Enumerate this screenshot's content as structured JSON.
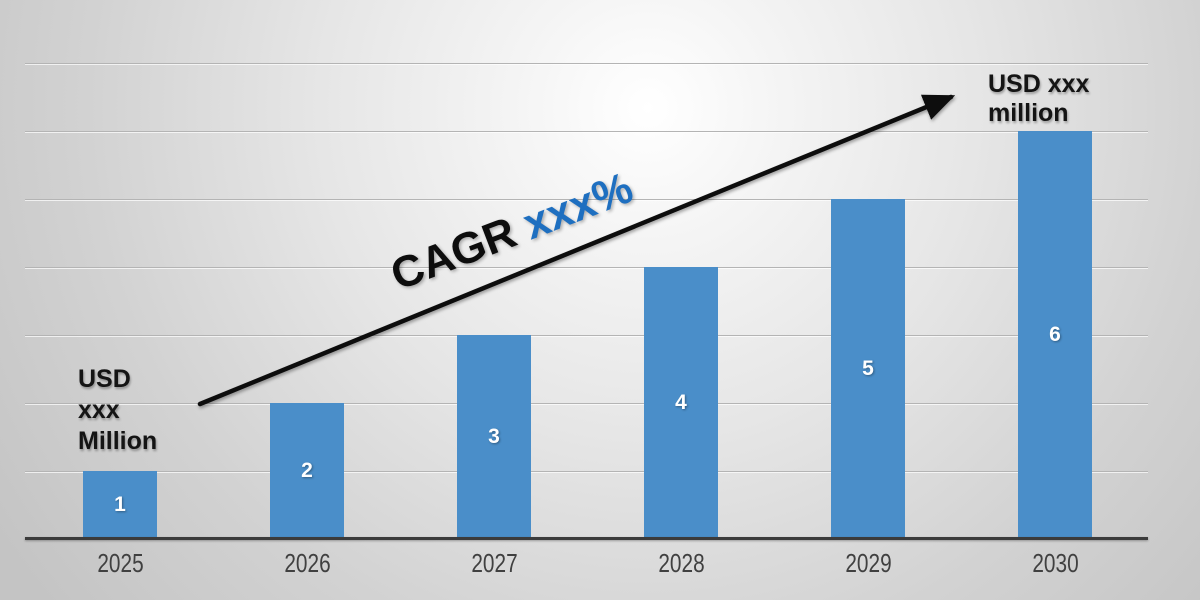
{
  "chart_data": {
    "type": "bar",
    "title": "",
    "categories": [
      "2025",
      "2026",
      "2027",
      "2028",
      "2029",
      "2030"
    ],
    "values": [
      1,
      2,
      3,
      4,
      5,
      6
    ],
    "bar_labels": [
      "1",
      "2",
      "3",
      "4",
      "5",
      "6"
    ],
    "xlabel": "",
    "ylabel": "",
    "ylim": [
      0,
      7
    ],
    "gridline_step": 1,
    "grid": true,
    "legend": false,
    "bar_color": "#4A8EC9",
    "bar_label_color": "#FFFFFF",
    "axis_line_color": "#3B3B3B",
    "gridline_color": "#B4B4B4",
    "tick_label_color": "#404040"
  },
  "annotations": {
    "start_label": "USD\nxxx\nMillion",
    "end_label": "USD xxx\nmillion",
    "start_end_label_color": "#141414",
    "cagr_prefix": "CAGR",
    "cagr_value": "xxx%",
    "cagr_prefix_color": "#0D0D0D",
    "cagr_value_color": "#1E6FC0",
    "arrow_direction": "up-right",
    "arrow_color": "#0D0D0D"
  }
}
